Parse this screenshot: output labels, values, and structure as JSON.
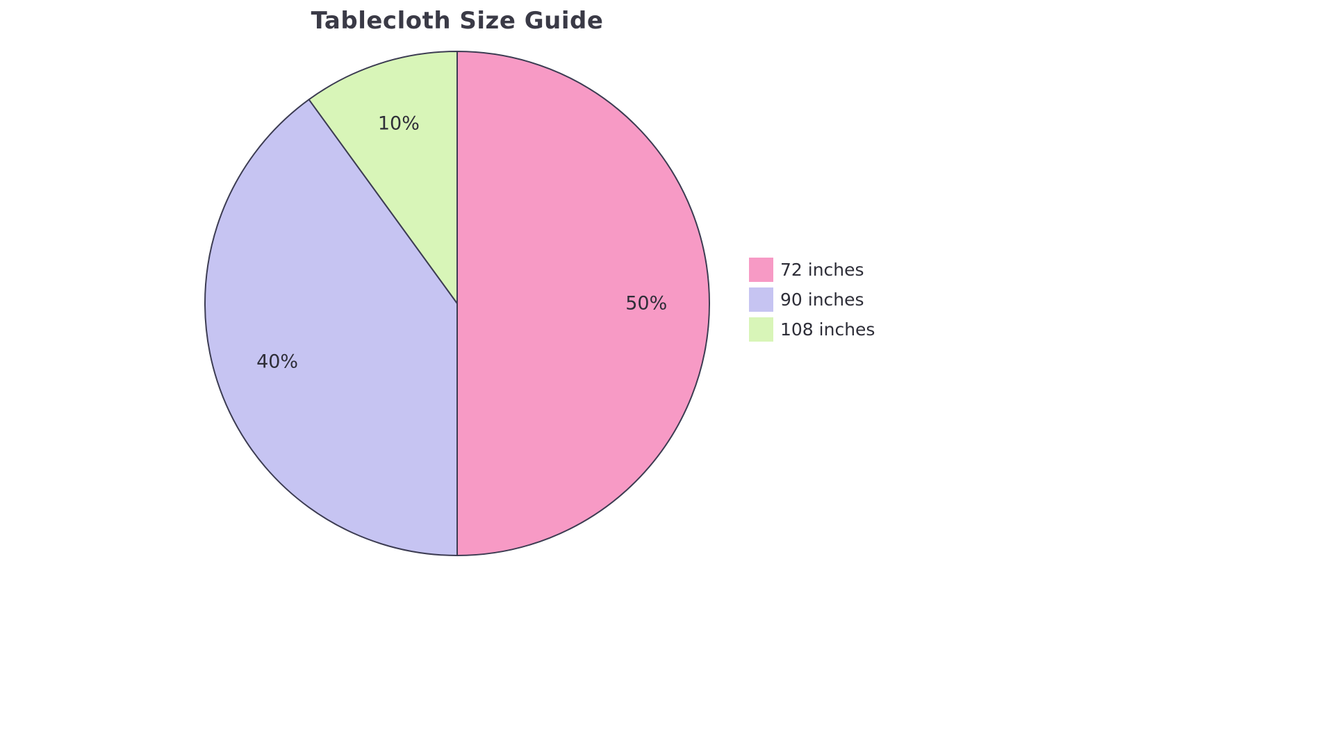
{
  "title": "Tablecloth Size Guide",
  "chart_data": {
    "type": "pie",
    "title": "Tablecloth Size Guide",
    "labels": [
      "72 inches",
      "90 inches",
      "108 inches"
    ],
    "values": [
      50,
      40,
      10
    ],
    "percent_labels": [
      "50%",
      "40%",
      "10%"
    ],
    "colors": [
      "#F79AC5",
      "#C6C4F2",
      "#D8F5B8"
    ],
    "stroke_color": "#3C3C52",
    "start_angle_deg": -90,
    "direction": "clockwise",
    "legend_position": "right",
    "background": "#FFFFFF"
  }
}
